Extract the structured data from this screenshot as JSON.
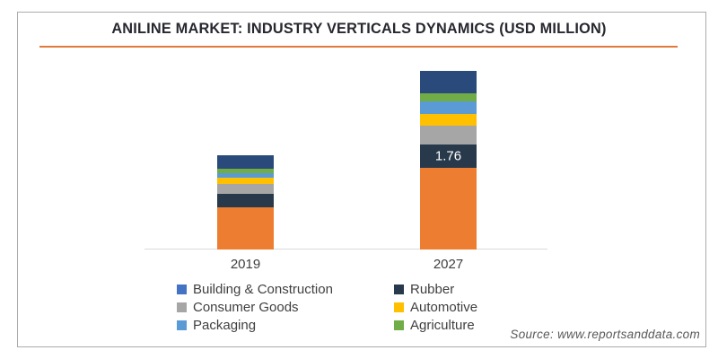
{
  "page": {
    "title": "ANILINE MARKET: INDUSTRY VERTICALS DYNAMICS (USD MILLION)",
    "source_text": "Source: www.reportsanddata.com",
    "accent_color": "#e1793b",
    "frame_border_color": "#ababab"
  },
  "chart_data": {
    "type": "bar",
    "stacked": true,
    "title": "ANILINE MARKET: INDUSTRY VERTICALS DYNAMICS (USD MILLION)",
    "categories": [
      "2019",
      "2027"
    ],
    "series": [
      {
        "name": "",
        "color": "#ed7d31",
        "values": [
          3.18,
          6.16
        ]
      },
      {
        "name": "Rubber",
        "color": "#28394b",
        "values": [
          1.02,
          1.76
        ]
      },
      {
        "name": "Consumer Goods",
        "color": "#a6a6a6",
        "values": [
          0.74,
          1.42
        ]
      },
      {
        "name": "Automotive",
        "color": "#ffc000",
        "values": [
          0.47,
          0.88
        ]
      },
      {
        "name": "Packaging",
        "color": "#5b9bd5",
        "values": [
          0.34,
          0.95
        ]
      },
      {
        "name": "Agriculture",
        "color": "#70ad47",
        "values": [
          0.34,
          0.61
        ]
      },
      {
        "name": "Building & Construction",
        "color": "#2b4a7c",
        "values": [
          1.02,
          1.69
        ]
      }
    ],
    "data_labels": [
      {
        "category": "2027",
        "series": "Rubber",
        "text": "1.76"
      }
    ],
    "legend": {
      "position": "bottom",
      "columns": [
        [
          {
            "label": "Building & Construction",
            "color": "#4472c4"
          },
          {
            "label": "Consumer Goods",
            "color": "#a6a6a6"
          },
          {
            "label": "Packaging",
            "color": "#5b9bd5"
          }
        ],
        [
          {
            "label": "Rubber",
            "color": "#28394b"
          },
          {
            "label": "Automotive",
            "color": "#ffc000"
          },
          {
            "label": "Agriculture",
            "color": "#70ad47"
          }
        ]
      ]
    },
    "axes": {
      "x_labels": [
        "2019",
        "2027"
      ],
      "y_axis_visible": false,
      "gridlines": false,
      "baseline_color": "#d9d9d9"
    }
  }
}
